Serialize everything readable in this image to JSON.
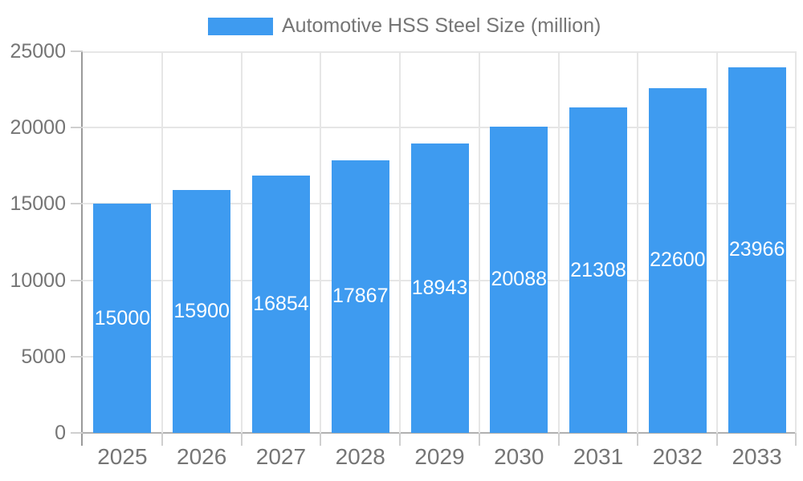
{
  "legend": {
    "label": "Automotive HSS Steel Size (million)"
  },
  "chart_data": {
    "type": "bar",
    "title": "",
    "categories": [
      "2025",
      "2026",
      "2027",
      "2028",
      "2029",
      "2030",
      "2031",
      "2032",
      "2033"
    ],
    "values": [
      15000,
      15900,
      16854,
      17867,
      18943,
      20088,
      21308,
      22600,
      23966
    ],
    "series_name": "Automotive HSS Steel Size (million)",
    "xlabel": "",
    "ylabel": "",
    "ylim": [
      0,
      25000
    ],
    "yticks": [
      0,
      5000,
      10000,
      15000,
      20000,
      25000
    ],
    "grid": true,
    "legend_position": "top-center",
    "value_labels_inside_bars": true
  },
  "colors": {
    "bar": "#3e9bf0",
    "axis_text": "#757575",
    "value_label": "#ffffff",
    "gridline": "#e6e6e6",
    "axis_line": "#9a9a9a",
    "baseline": "#b0b0b0",
    "tick": "#cfcfcf",
    "background": "#ffffff"
  }
}
